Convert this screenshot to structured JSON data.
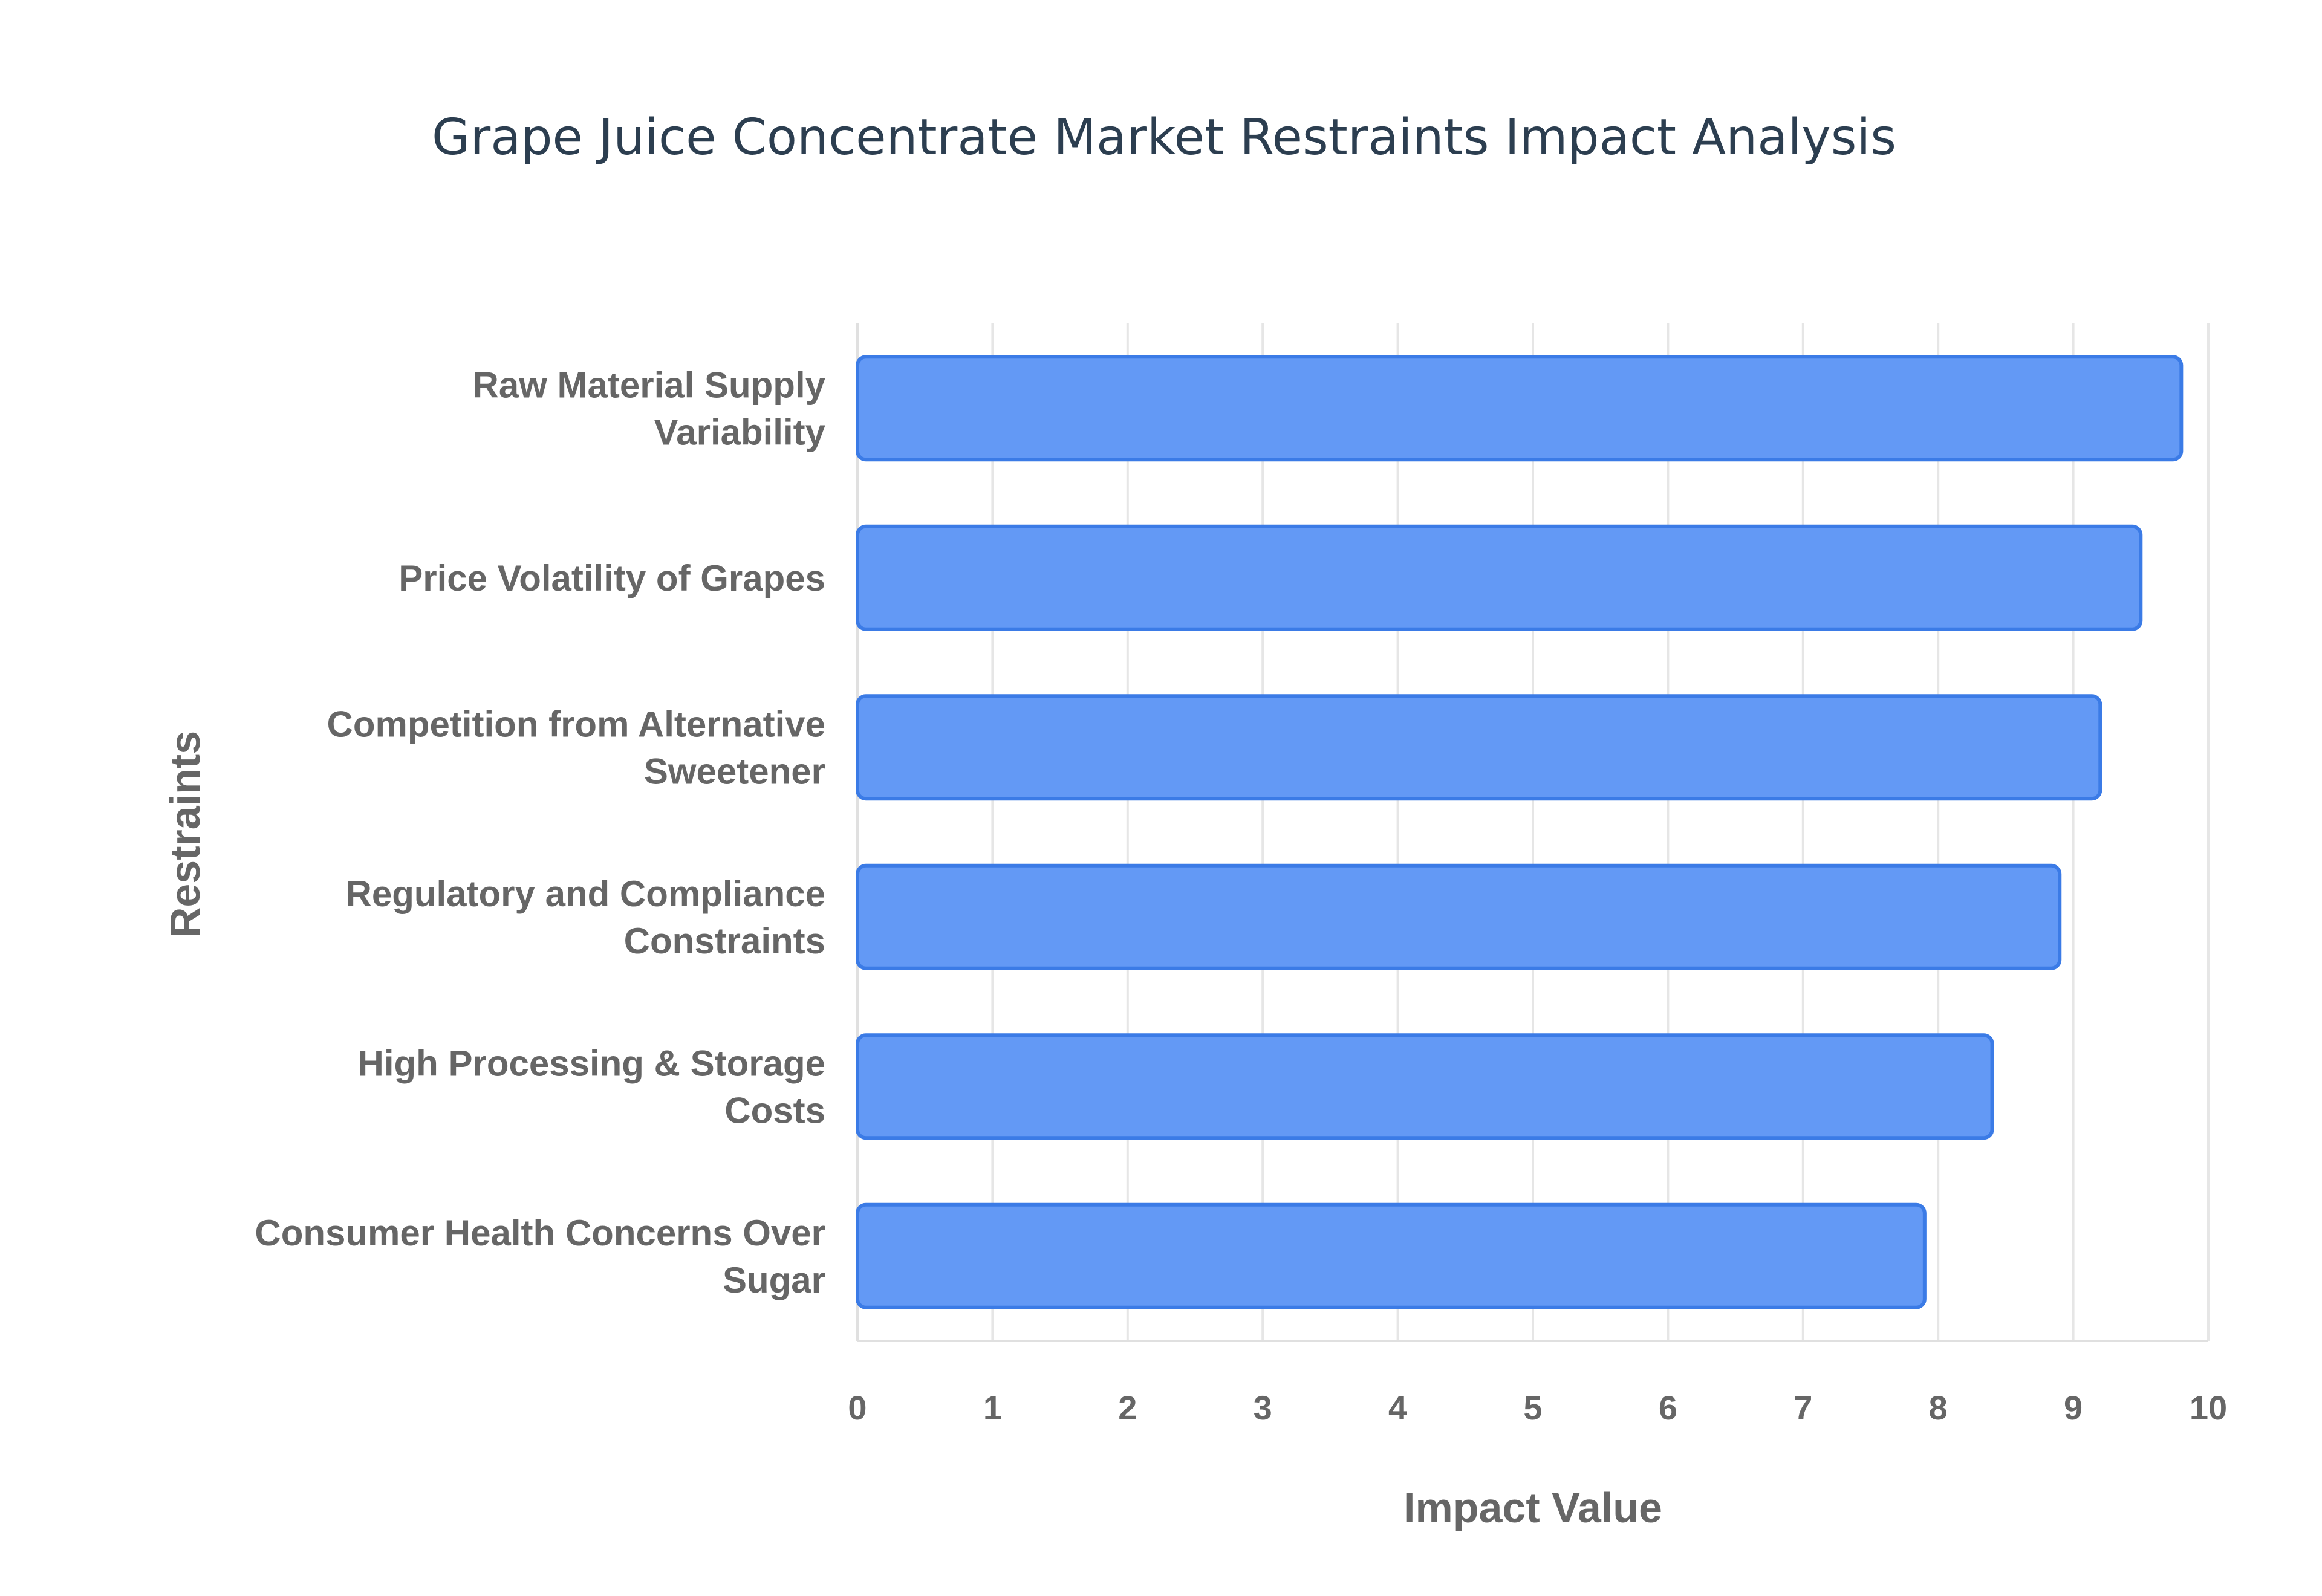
{
  "chart_data": {
    "type": "bar",
    "orientation": "horizontal",
    "title": "Grape Juice Concentrate Market Restraints Impact Analysis",
    "xlabel": "Impact Value",
    "ylabel": "Restraints",
    "xlim": [
      0,
      10
    ],
    "x_ticks": [
      "0",
      "1",
      "2",
      "3",
      "4",
      "5",
      "6",
      "7",
      "8",
      "9",
      "10"
    ],
    "grid": true,
    "categories": [
      [
        "Raw Material Supply",
        "Variability"
      ],
      [
        "Price Volatility of Grapes"
      ],
      [
        "Competition from Alternative",
        "Sweetener"
      ],
      [
        "Regulatory and Compliance",
        "Constraints"
      ],
      [
        "High Processing & Storage",
        "Costs"
      ],
      [
        "Consumer Health Concerns Over",
        "Sugar"
      ]
    ],
    "values": [
      9.8,
      9.5,
      9.2,
      8.9,
      8.4,
      7.9
    ],
    "colors": {
      "bar_fill": "#6399f5",
      "bar_stroke": "#3b7be6",
      "title": "#2c3e50",
      "labels": "#666666",
      "grid": "#e6e6e6"
    }
  }
}
